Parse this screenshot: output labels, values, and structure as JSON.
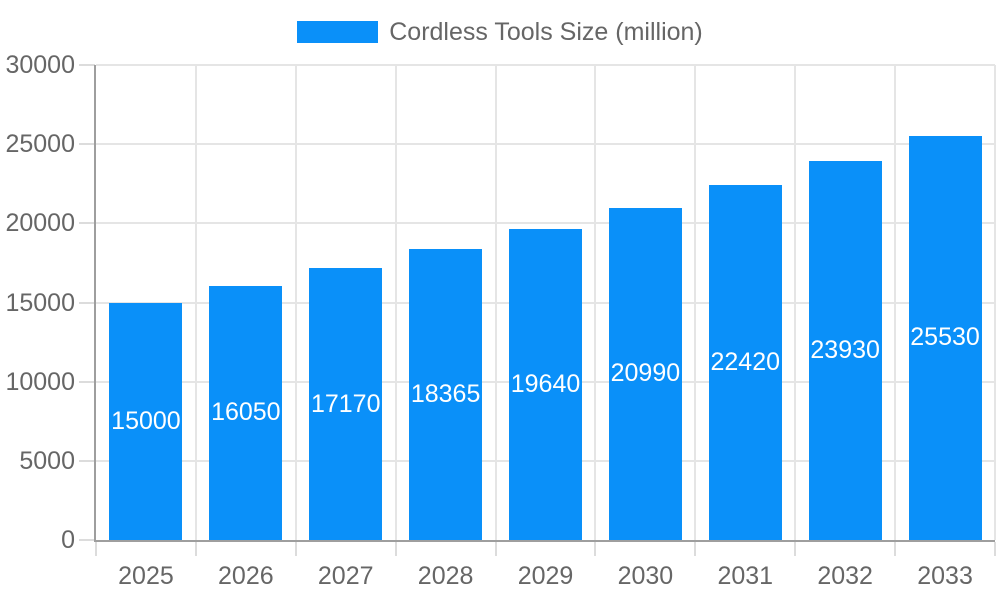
{
  "chart_data": {
    "type": "bar",
    "title": "Cordless Tools Size (million)",
    "categories": [
      "2025",
      "2026",
      "2027",
      "2028",
      "2029",
      "2030",
      "2031",
      "2032",
      "2033"
    ],
    "series": [
      {
        "name": "Cordless Tools Size (million)",
        "values": [
          15000,
          16050,
          17170,
          18365,
          19640,
          20990,
          22420,
          23930,
          25530
        ]
      }
    ],
    "xlabel": "",
    "ylabel": "",
    "ylim": [
      0,
      30000
    ],
    "yticks": [
      0,
      5000,
      10000,
      15000,
      20000,
      25000,
      30000
    ],
    "legend_position": "top",
    "grid": true,
    "bar_labels_inside": true,
    "colors": {
      "bar": "#0a90f9",
      "bar_label": "#ffffff",
      "axis_line": "#9e9e9e",
      "gridline": "#e5e5e5",
      "tick_mark": "#dcdcdc",
      "tick_label": "#666666",
      "legend_text": "#666666",
      "background": "#ffffff"
    }
  }
}
